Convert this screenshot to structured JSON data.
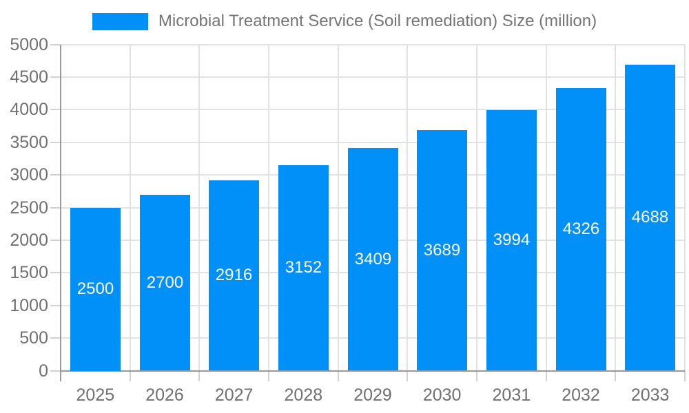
{
  "legend": {
    "label": "Microbial Treatment Service (Soil remediation) Size (million)"
  },
  "chart_data": {
    "type": "bar",
    "title": "Microbial Treatment Service (Soil remediation) Size (million)",
    "categories": [
      "2025",
      "2026",
      "2027",
      "2028",
      "2029",
      "2030",
      "2031",
      "2032",
      "2033"
    ],
    "values": [
      2500,
      2700,
      2916,
      3152,
      3409,
      3689,
      3994,
      4326,
      4688
    ],
    "bar_value_labels": [
      "2500",
      "2700",
      "2916",
      "3152",
      "3409",
      "3689",
      "3994",
      "4326",
      "4688"
    ],
    "xlabel": "",
    "ylabel": "",
    "ylim": [
      0,
      5000
    ],
    "y_ticks": [
      0,
      500,
      1000,
      1500,
      2000,
      2500,
      3000,
      3500,
      4000,
      4500,
      5000
    ],
    "grid": "horizontal and vertical, light gray",
    "legend_position": "top-center",
    "value_labels_position": "inside-center, white",
    "colors": {
      "bar": "#0090f8",
      "grid": "#e2e2e2",
      "tick": "#d2d2d2",
      "axis": "#999999",
      "axis_text": "#707070",
      "legend_text": "#757575",
      "value_text": "#ffffff",
      "background": "#ffffff"
    }
  }
}
